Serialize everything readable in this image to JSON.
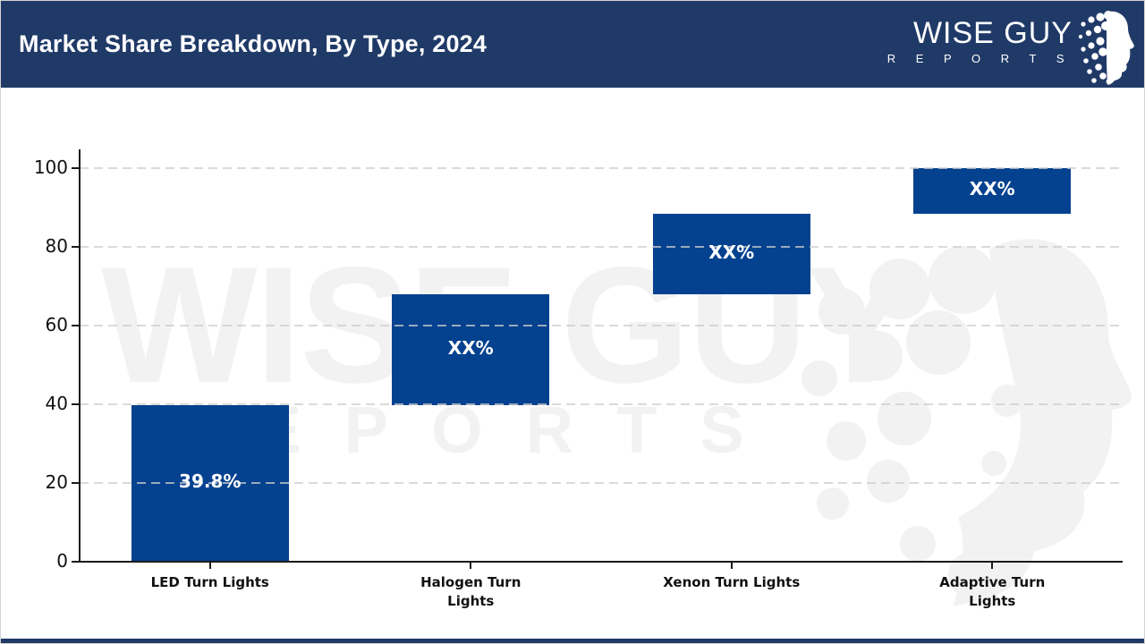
{
  "header": {
    "title": "Market Share Breakdown, By Type, 2024",
    "logo": {
      "wordmark": "WISE GUY",
      "sub": "R E P O R T S"
    }
  },
  "watermark": {
    "wordmark": "WISE GUY",
    "sub": "REPORTS"
  },
  "colors": {
    "header_bg": "#203a68",
    "bar": "#04418f",
    "grid": "#cdcdcd",
    "watermark": "#f2f2f2",
    "axis": "#1a1a1a",
    "bar_label_text": "#ffffff"
  },
  "chart_data": {
    "type": "bar",
    "variant": "floating-stacked-breakdown",
    "title": "Market Share Breakdown, By Type, 2024",
    "categories": [
      "LED Turn Lights",
      "Halogen Turn Lights",
      "Xenon Turn Lights",
      "Adaptive Turn Lights"
    ],
    "category_label_lines": [
      [
        "LED Turn Lights"
      ],
      [
        "Halogen Turn",
        "Lights"
      ],
      [
        "Xenon Turn Lights"
      ],
      [
        "Adaptive Turn",
        "Lights"
      ]
    ],
    "segments": [
      {
        "category": "LED Turn Lights",
        "start": 0,
        "end": 39.8,
        "label": "39.8%"
      },
      {
        "category": "Halogen Turn Lights",
        "start": 39.8,
        "end": 68,
        "label": "XX%"
      },
      {
        "category": "Xenon Turn Lights",
        "start": 68,
        "end": 88.5,
        "label": "XX%"
      },
      {
        "category": "Adaptive Turn Lights",
        "start": 88.5,
        "end": 100,
        "label": "XX%"
      }
    ],
    "ylabel": "",
    "xlabel": "",
    "ylim": [
      0,
      100
    ],
    "yticks": [
      0,
      20,
      40,
      60,
      80,
      100
    ],
    "grid": "horizontal-dashed, drawn above bars",
    "legend": "none",
    "unit": "percent"
  }
}
